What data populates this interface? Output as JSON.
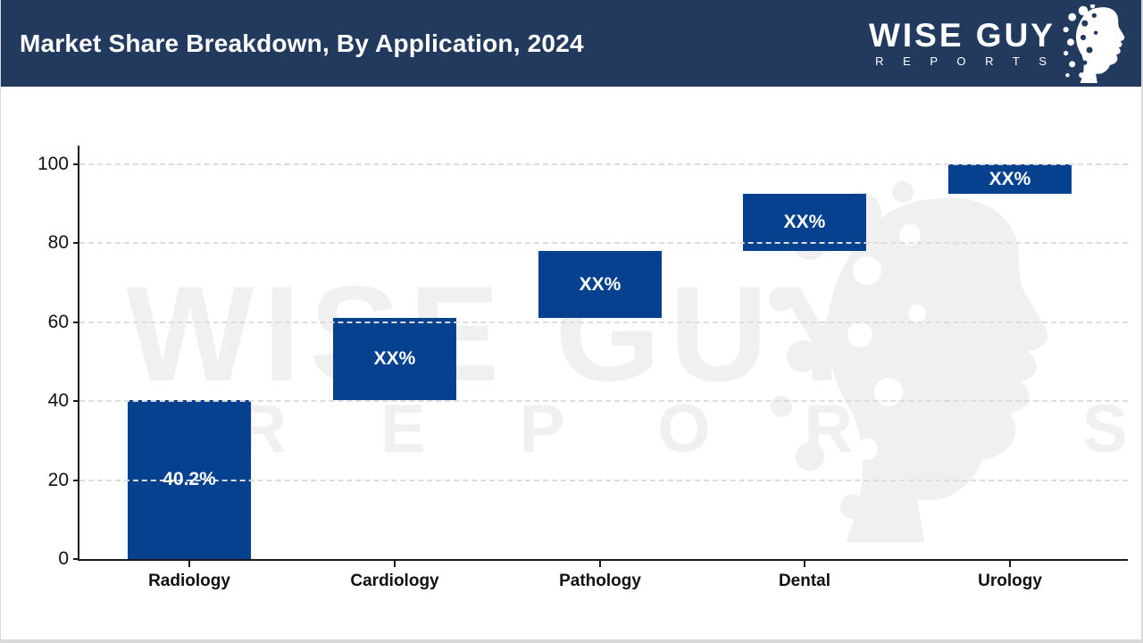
{
  "header": {
    "title": "Market Share Breakdown, By Application, 2024",
    "logo": {
      "line1": "WISE GUY",
      "line2": "R E P O R T S"
    }
  },
  "watermark": {
    "line1": "WISE GUY",
    "line2": "R E P O R T S"
  },
  "colors": {
    "header_bg": "#233a5f",
    "bar": "#05418f",
    "grid": "#dcdcdc",
    "axis": "#1a1a1a",
    "watermark": "#f0f0f0",
    "frame": "#d9d9d9",
    "label_on_bar": "#ffffff"
  },
  "chart_data": {
    "type": "bar",
    "subtype": "waterfall",
    "title": "Market Share Breakdown, By Application, 2024",
    "categories": [
      "Radiology",
      "Cardiology",
      "Pathology",
      "Dental",
      "Urology"
    ],
    "segments": [
      {
        "category": "Radiology",
        "start": 0,
        "end": 40.2,
        "label": "40.2%"
      },
      {
        "category": "Cardiology",
        "start": 40.2,
        "end": 61.0,
        "label": "XX%"
      },
      {
        "category": "Pathology",
        "start": 61.0,
        "end": 78.0,
        "label": "XX%"
      },
      {
        "category": "Dental",
        "start": 78.0,
        "end": 92.5,
        "label": "XX%"
      },
      {
        "category": "Urology",
        "start": 92.5,
        "end": 100,
        "label": "XX%"
      }
    ],
    "xlabel": "",
    "ylabel": "",
    "ylim": [
      0,
      105
    ],
    "yticks": [
      0,
      20,
      40,
      60,
      80,
      100
    ],
    "grid": "horizontal-dashed",
    "legend": "none",
    "bar_color": "#05418f",
    "value_label_color": "#ffffff"
  }
}
